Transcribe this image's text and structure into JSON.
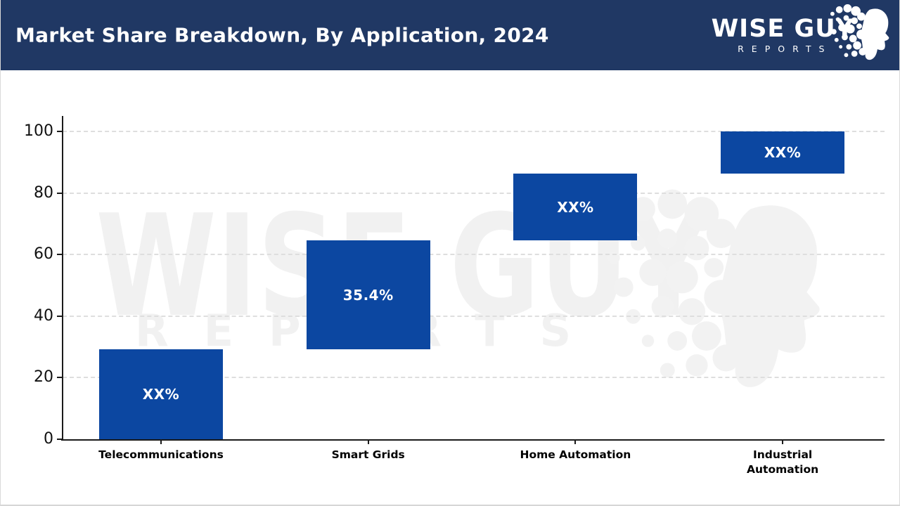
{
  "header": {
    "title": "Market Share Breakdown, By Application, 2024",
    "background_color": "#203864",
    "logo": {
      "name": "WISE GUY",
      "sub": "REPORTS",
      "face_icon": "face-profile-dots"
    }
  },
  "watermark": {
    "line1": "WISE GUY",
    "line2": "REPORTS"
  },
  "chart_data": {
    "type": "bar",
    "subtype": "stacked-waterfall-percentage",
    "title": "Market Share Breakdown, By Application, 2024",
    "categories": [
      "Telecommunications",
      "Smart Grids",
      "Home Automation",
      "Industrial\nAutomation"
    ],
    "bars": [
      {
        "category": "Telecommunications",
        "start": 0,
        "end": 29.2,
        "label": "XX%"
      },
      {
        "category": "Smart Grids",
        "start": 29.2,
        "end": 64.6,
        "label": "35.4%",
        "value": 35.4
      },
      {
        "category": "Home Automation",
        "start": 64.6,
        "end": 86.2,
        "label": "XX%"
      },
      {
        "category": "Industrial Automation",
        "start": 86.2,
        "end": 100,
        "label": "XX%"
      }
    ],
    "ylim": [
      0,
      100
    ],
    "y_ticks": [
      0,
      20,
      40,
      60,
      80,
      100
    ],
    "xlabel": "",
    "ylabel": "",
    "grid": "horizontal-dashed",
    "legend": "none",
    "bar_color": "#0c47a1",
    "bar_label_color": "#ffffff",
    "axis_color": "#1a1a1a",
    "grid_color": "#dedede"
  }
}
